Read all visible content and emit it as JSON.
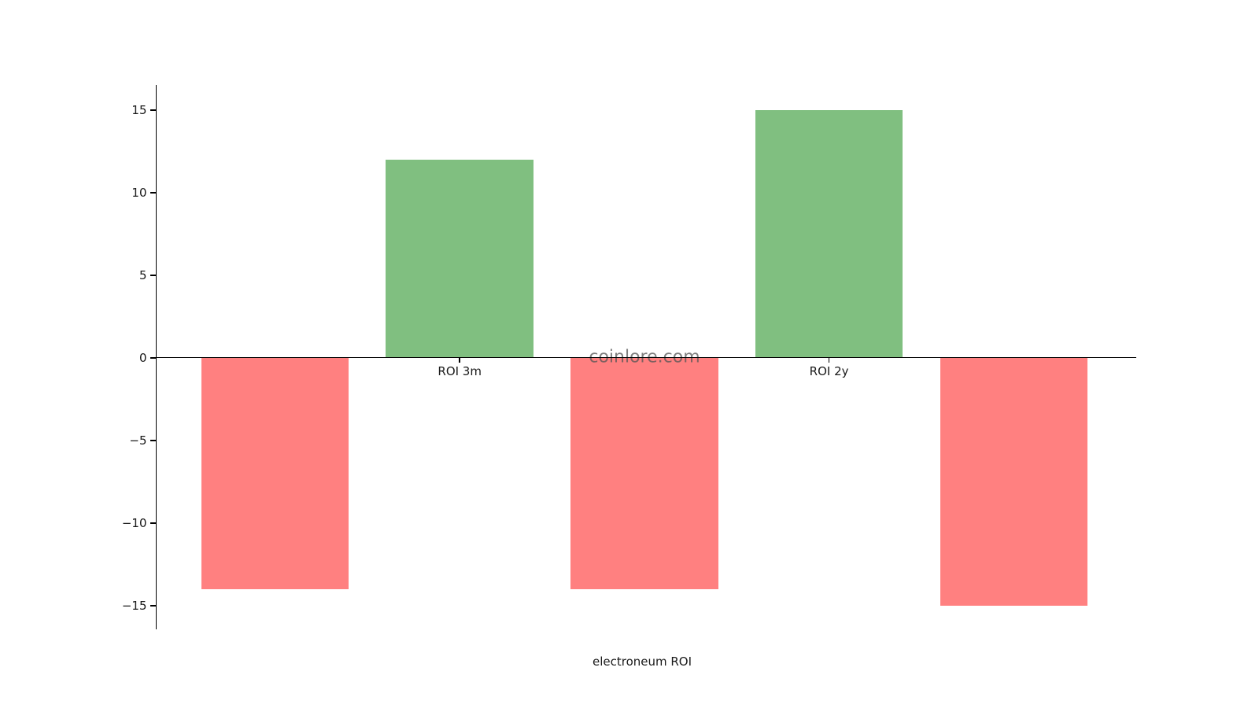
{
  "chart_data": {
    "type": "bar",
    "title": "",
    "xlabel": "electroneum ROI",
    "watermark": "coinlore.com",
    "bars": [
      {
        "label": "",
        "value": -14
      },
      {
        "label": "ROI 3m",
        "value": 12
      },
      {
        "label": "",
        "value": -14
      },
      {
        "label": "ROI 2y",
        "value": 15
      },
      {
        "label": "",
        "value": -15
      }
    ],
    "ytick_values": [
      15,
      10,
      5,
      0,
      -5,
      -10,
      -15
    ],
    "ytick_labels": [
      "15",
      "10",
      "5",
      "0",
      "−5",
      "−10",
      "−15"
    ],
    "ylim": [
      -16.5,
      16.5
    ],
    "grid": false,
    "legend_position": "none",
    "note": "x tick labels visible only under positive (green) bars; red bars cover their labels",
    "colors": {
      "positive": "#80bf80",
      "negative": "#ff8080",
      "axis": "#000000",
      "text": "#1a1a1a",
      "watermark": "#555555"
    }
  }
}
